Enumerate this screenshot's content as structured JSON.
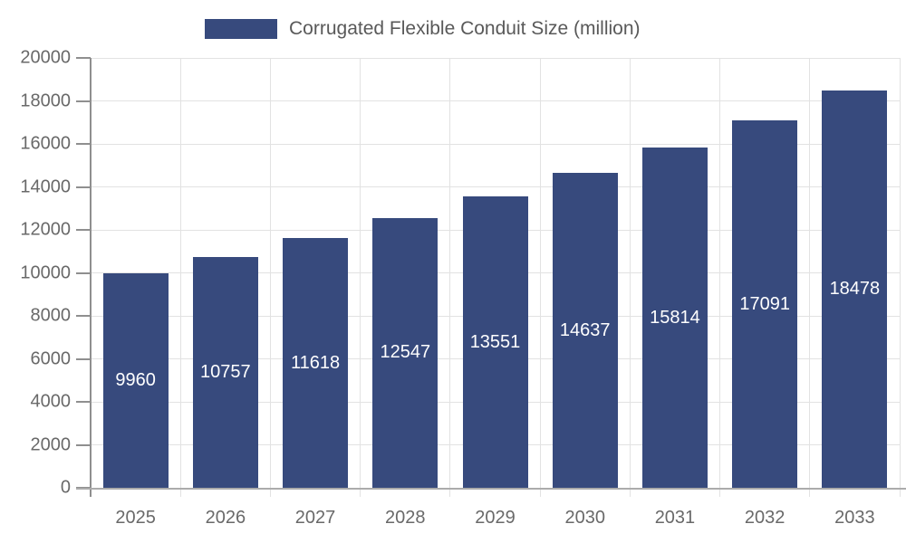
{
  "chart_data": {
    "type": "bar",
    "title": "Corrugated Flexible Conduit Size (million)",
    "series_name": "Corrugated Flexible Conduit Size (million)",
    "categories": [
      "2025",
      "2026",
      "2027",
      "2028",
      "2029",
      "2030",
      "2031",
      "2032",
      "2033"
    ],
    "values": [
      9960,
      10757,
      11618,
      12547,
      13551,
      14637,
      15814,
      17091,
      18478
    ],
    "xlabel": "",
    "ylabel": "",
    "ylim": [
      0,
      20000
    ],
    "ytick_step": 2000,
    "ytick_labels": [
      "0",
      "2000",
      "4000",
      "6000",
      "8000",
      "10000",
      "12000",
      "14000",
      "16000",
      "18000",
      "20000"
    ],
    "grid": true,
    "legend_position": "top",
    "bar_label_position": "inside-center"
  },
  "colors": {
    "bar": "#374A7D",
    "grid": "#E2E2E2",
    "axis_y": "#8F8F8F",
    "axis_x": "#ABABAB",
    "tick_label": "#696969",
    "legend_text": "#595959",
    "bar_label": "#FFFFFF",
    "background": "#FFFFFF"
  }
}
